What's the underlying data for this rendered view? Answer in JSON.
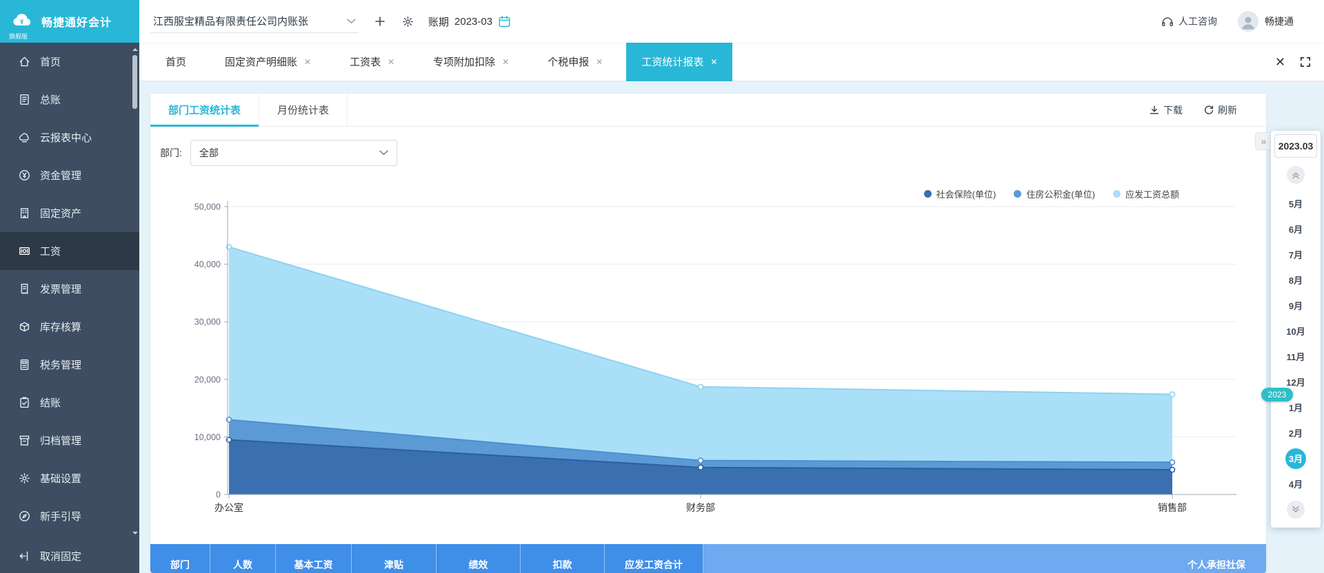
{
  "theme": {
    "accent": "#29B7D8",
    "sidebar_bg": "#3E4D61",
    "sidebar_active_bg": "#2E3947",
    "content_bg": "#E6F2FA",
    "table_header_bg": "#3F8EE8",
    "table_header_group_bg": "#6FA9EF"
  },
  "topbar": {
    "logo_title": "畅捷通好会计",
    "logo_subtitle": "旗舰版",
    "company": "江西服宝精品有限责任公司内账张",
    "period_label": "账期",
    "period_value": "2023-03",
    "consult_label": "人工咨询",
    "user_name": "畅捷通"
  },
  "sidebar": {
    "active_index": 5,
    "items": [
      {
        "label": "首页",
        "icon": "home-icon"
      },
      {
        "label": "总账",
        "icon": "ledger-icon"
      },
      {
        "label": "云报表中心",
        "icon": "cloud-report-icon"
      },
      {
        "label": "资金管理",
        "icon": "funds-icon"
      },
      {
        "label": "固定资产",
        "icon": "fixed-assets-icon"
      },
      {
        "label": "工资",
        "icon": "salary-icon"
      },
      {
        "label": "发票管理",
        "icon": "invoice-icon"
      },
      {
        "label": "库存核算",
        "icon": "inventory-icon"
      },
      {
        "label": "税务管理",
        "icon": "tax-icon"
      },
      {
        "label": "结账",
        "icon": "closing-icon"
      },
      {
        "label": "归档管理",
        "icon": "archive-icon"
      },
      {
        "label": "基础设置",
        "icon": "settings-icon"
      },
      {
        "label": "新手引导",
        "icon": "guide-icon"
      }
    ],
    "unpin_label": "取消固定"
  },
  "tabs": {
    "active_index": 5,
    "items": [
      {
        "label": "首页",
        "closable": false
      },
      {
        "label": "固定资产明细账",
        "closable": true
      },
      {
        "label": "工资表",
        "closable": true
      },
      {
        "label": "专项附加扣除",
        "closable": true
      },
      {
        "label": "个税申报",
        "closable": true
      },
      {
        "label": "工资统计报表",
        "closable": true
      }
    ]
  },
  "subtabs": {
    "active_index": 0,
    "items": [
      "部门工资统计表",
      "月份统计表"
    ]
  },
  "toolbar": {
    "download_label": "下载",
    "refresh_label": "刷新"
  },
  "filter": {
    "label": "部门:",
    "value": "全部"
  },
  "chart_data": {
    "type": "area",
    "title": "",
    "categories": [
      "办公室",
      "财务部",
      "销售部"
    ],
    "series": [
      {
        "name": "社会保险(单位)",
        "color": "#2C5F9E",
        "fill": "#3A6FB0",
        "values": [
          9500,
          4700,
          4300
        ]
      },
      {
        "name": "住房公积金(单位)",
        "color": "#4E8FCE",
        "fill": "#5C9AD6",
        "values": [
          13000,
          5900,
          5600
        ]
      },
      {
        "name": "应发工资总额",
        "color": "#8ED2F0",
        "fill": "#A9E0F8",
        "values": [
          43000,
          18700,
          17400
        ]
      }
    ],
    "ylim": [
      0,
      50000
    ],
    "yticks": [
      0,
      10000,
      20000,
      30000,
      40000,
      50000
    ],
    "grid": true,
    "legend_position": "top-right"
  },
  "table": {
    "columns": [
      "部门",
      "人数",
      "基本工资",
      "津贴",
      "绩效",
      "扣款",
      "应发工资合计"
    ],
    "group_header": "个人承担社保"
  },
  "period_panel": {
    "current": "2023.03",
    "year_badge": "2023",
    "active_month": "3月",
    "months": [
      "5月",
      "6月",
      "7月",
      "8月",
      "9月",
      "10月",
      "11月",
      "12月",
      "1月",
      "2月",
      "3月",
      "4月"
    ]
  }
}
